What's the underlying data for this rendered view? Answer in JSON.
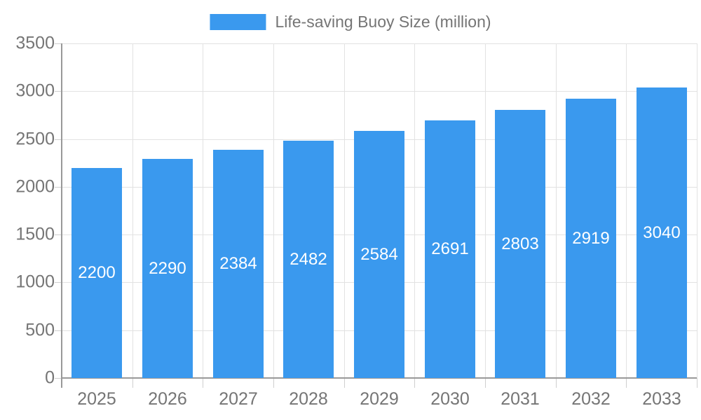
{
  "colors": {
    "bar": "#3A99EE",
    "grid": "#E2E2E2",
    "tick": "#CFCFCF",
    "axis": "#999999",
    "axis_text": "#757575",
    "bar_label_text": "#FFFFFF",
    "legend_text": "#757575",
    "background": "#FFFFFF"
  },
  "chart_data": {
    "type": "bar",
    "title": "",
    "legend_label": "Life-saving Buoy Size (million)",
    "categories": [
      "2025",
      "2026",
      "2027",
      "2028",
      "2029",
      "2030",
      "2031",
      "2032",
      "2033"
    ],
    "values": [
      2200,
      2290,
      2384,
      2482,
      2584,
      2691,
      2803,
      2919,
      3040
    ],
    "xlabel": "",
    "ylabel": "",
    "ylim": [
      0,
      3500
    ],
    "yticks": [
      0,
      500,
      1000,
      1500,
      2000,
      2500,
      3000,
      3500
    ],
    "grid": true,
    "legend_position": "top-center",
    "value_label_position": "inside-center"
  }
}
